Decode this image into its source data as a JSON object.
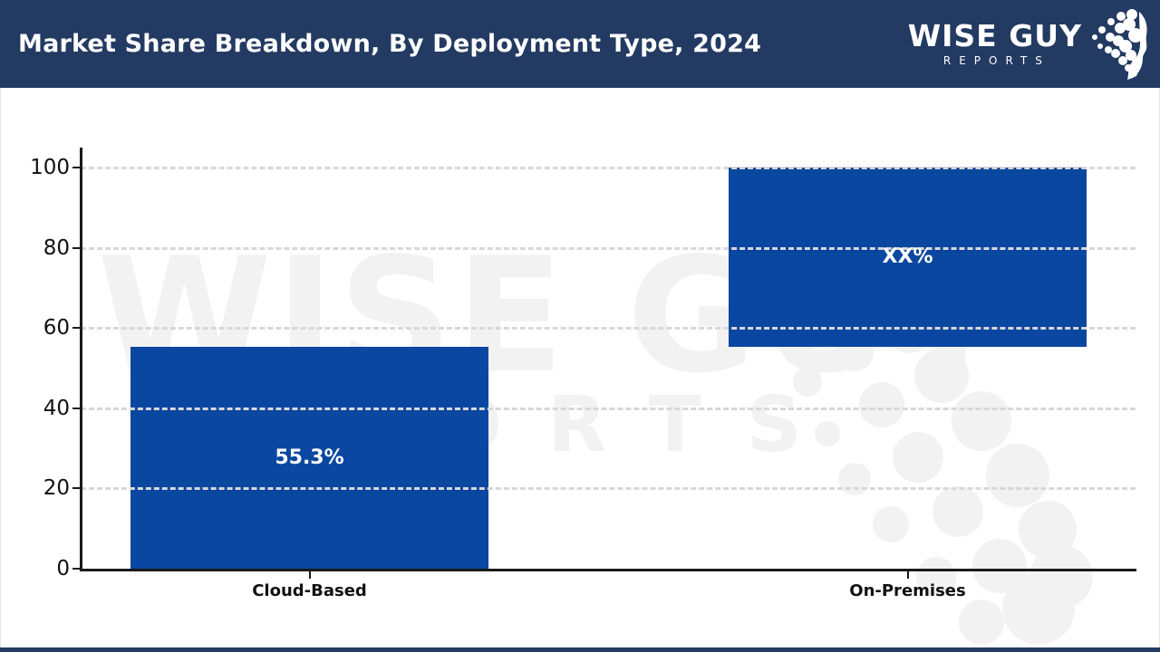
{
  "header": {
    "title": "Market Share Breakdown, By Deployment Type, 2024",
    "logo": {
      "line1": "WISE GUY",
      "line2": "REPORTS"
    }
  },
  "watermark": {
    "line1": "WISE GUY",
    "line2": "REPORTS"
  },
  "colors": {
    "header_bg": "#233a62",
    "bar": "#0a47a0",
    "bar_label": "#ffffff",
    "gridline": "#d8d8d8",
    "axis": "#1a1a1a",
    "watermark": "#f2f2f3"
  },
  "chart_data": {
    "type": "bar",
    "title": "Market Share Breakdown, By Deployment Type, 2024",
    "categories": [
      "Cloud-Based",
      "On-Premises"
    ],
    "bars": [
      {
        "category": "Cloud-Based",
        "start": 0,
        "end": 55.3,
        "label": "55.3%"
      },
      {
        "category": "On-Premises",
        "start": 55.3,
        "end": 100,
        "label": "XX%"
      }
    ],
    "yticks": [
      0,
      20,
      40,
      60,
      80,
      100
    ],
    "ylim": [
      0,
      105
    ],
    "xlabel": "",
    "ylabel": "",
    "grid": "horizontal-dashed",
    "legend": "none",
    "note": "stacked waterfall style: On-Premises bar floats from 55.3 to 100"
  }
}
